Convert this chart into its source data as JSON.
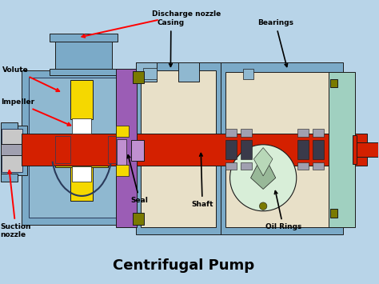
{
  "title": "Centrifugal Pump",
  "bg_color": "#b8d4e8",
  "title_fontsize": 13,
  "title_fontweight": "bold",
  "labels": {
    "discharge_nozzle": "Discharge nozzle",
    "volute": "Volute",
    "impeller": "Impeller",
    "casing": "Casing",
    "bearings": "Bearings",
    "suction_nozzle": "Suction\nnozzle",
    "seal": "Seal",
    "shaft": "Shaft",
    "oil_rings": "Oil Rings"
  },
  "colors": {
    "blue_body": "#7baac8",
    "blue_mid": "#8fb8d0",
    "blue_dark": "#4a6fa0",
    "yellow": "#f5d800",
    "yellow_dark": "#c8aa00",
    "red_shaft": "#d42000",
    "purple": "#9b5db5",
    "purple_light": "#c090d0",
    "gray_light": "#c8c8c8",
    "gray_med": "#a0a0b0",
    "olive": "#7a7a00",
    "olive_dark": "#555500",
    "cyan_light": "#a0d0c0",
    "white": "#ffffff",
    "green_light": "#d8eed8",
    "green_line": "#98b898",
    "beige": "#e8e0c8",
    "outline": "#1a1a1a",
    "dark_navy": "#2a3a5a"
  }
}
